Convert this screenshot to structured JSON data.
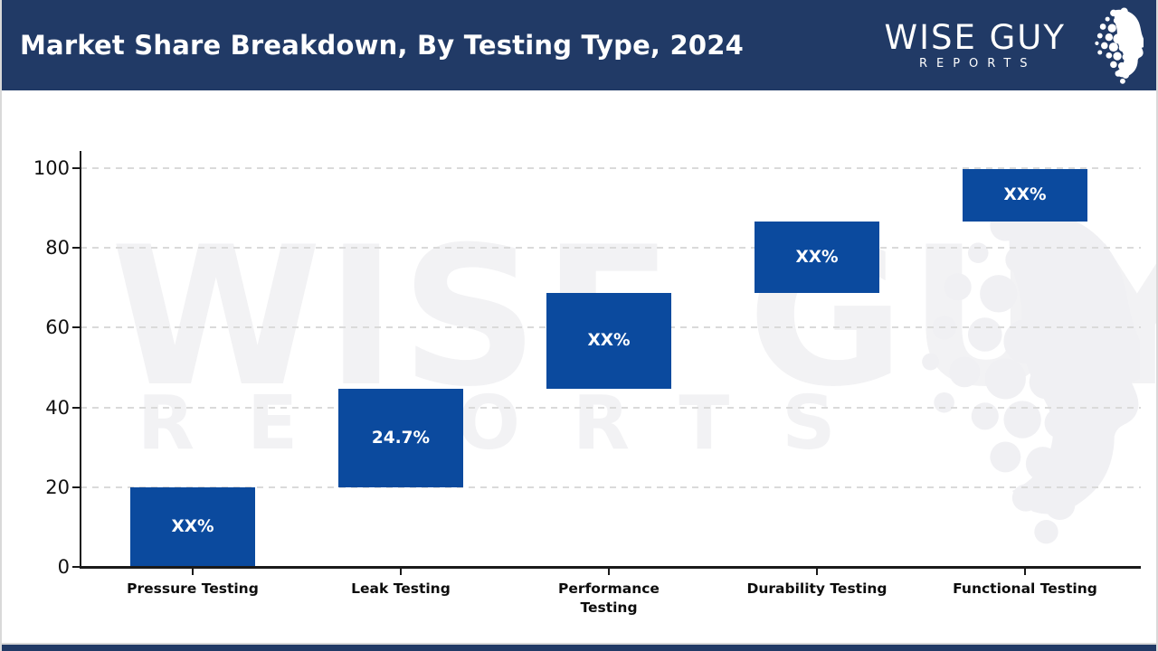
{
  "header": {
    "title": "Market Share Breakdown, By Testing Type, 2024",
    "logo": {
      "name": "WISE GUY",
      "subtitle": "REPORTS"
    }
  },
  "watermark": {
    "name": "WISE GUY",
    "subtitle": "REPORTS"
  },
  "colors": {
    "header_bg": "#213a66",
    "bar": "#0b4a9e",
    "gridline": "#dadada",
    "axis": "#1a1a1a",
    "title_text": "#ffffff",
    "bar_label_text": "#ffffff",
    "watermark": "#f2f2f4"
  },
  "chart_data": {
    "type": "bar",
    "subtype": "waterfall",
    "title": "Market Share Breakdown, By Testing Type, 2024",
    "xlabel": "",
    "ylabel": "",
    "categories": [
      "Pressure Testing",
      "Leak Testing",
      "Performance Testing",
      "Durability Testing",
      "Functional Testing"
    ],
    "segments": [
      {
        "category": "Pressure Testing",
        "start": 0,
        "end": 20,
        "label": "XX%"
      },
      {
        "category": "Leak Testing",
        "start": 20,
        "end": 44.7,
        "label": "24.7%"
      },
      {
        "category": "Performance Testing",
        "start": 44.7,
        "end": 68.7,
        "label": "XX%"
      },
      {
        "category": "Durability Testing",
        "start": 68.7,
        "end": 86.7,
        "label": "XX%"
      },
      {
        "category": "Functional Testing",
        "start": 86.7,
        "end": 99.7,
        "label": "XX%"
      }
    ],
    "yticks": [
      0,
      20,
      40,
      60,
      80,
      100
    ],
    "ylim": [
      0,
      105
    ],
    "grid": "horizontal-dashed",
    "legend": null
  }
}
